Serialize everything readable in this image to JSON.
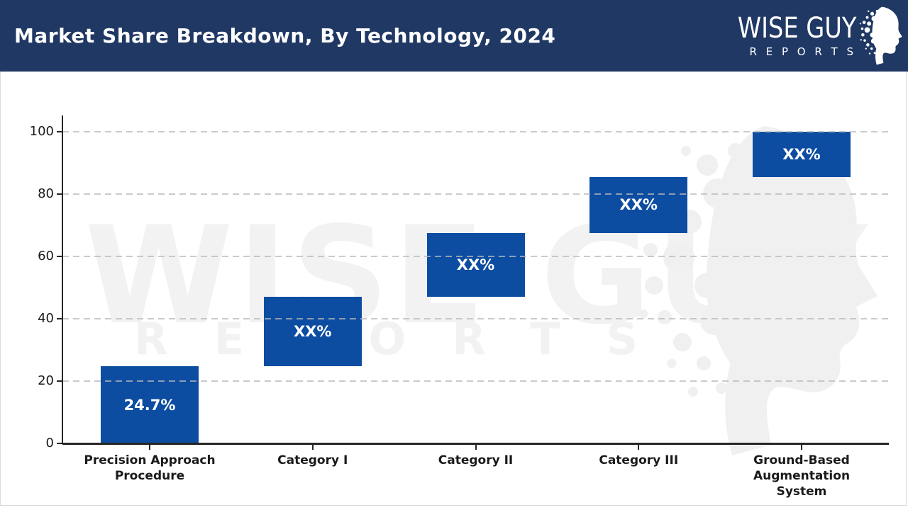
{
  "header": {
    "title": "Market Share Breakdown, By Technology, 2024",
    "bg_color": "#203864",
    "logo": {
      "line1": "WISE GUY",
      "line2": "R E P O R T S",
      "icon": "head-profile-dots-icon"
    }
  },
  "watermark": {
    "line1": "WISE GUY",
    "line2": "REPORTS",
    "icon": "head-profile-dots-icon"
  },
  "chart_data": {
    "type": "bar",
    "subtype": "waterfall",
    "title": "Market Share Breakdown, By Technology, 2024",
    "categories": [
      "Precision Approach Procedure",
      "Category I",
      "Category II",
      "Category III",
      "Ground-Based Augmentation System"
    ],
    "category_lines": [
      [
        "Precision Approach",
        "Procedure"
      ],
      [
        "Category I"
      ],
      [
        "Category II"
      ],
      [
        "Category III"
      ],
      [
        "Ground-Based",
        "Augmentation",
        "System"
      ]
    ],
    "segments": [
      {
        "label": "24.7%",
        "start": 0,
        "end": 24.7
      },
      {
        "label": "XX%",
        "start": 24.7,
        "end": 47.0
      },
      {
        "label": "XX%",
        "start": 47.0,
        "end": 67.5
      },
      {
        "label": "XX%",
        "start": 67.5,
        "end": 85.5
      },
      {
        "label": "XX%",
        "start": 85.5,
        "end": 100.0
      }
    ],
    "ylim": [
      0,
      100
    ],
    "yticks": [
      0,
      20,
      40,
      60,
      80,
      100
    ],
    "grid": "horizontal-dashed",
    "legend": "none",
    "bar_color": "#0c4da2",
    "bar_label_color": "#ffffff",
    "axis_color": "#262626",
    "grid_color": "#d2d2d2"
  }
}
